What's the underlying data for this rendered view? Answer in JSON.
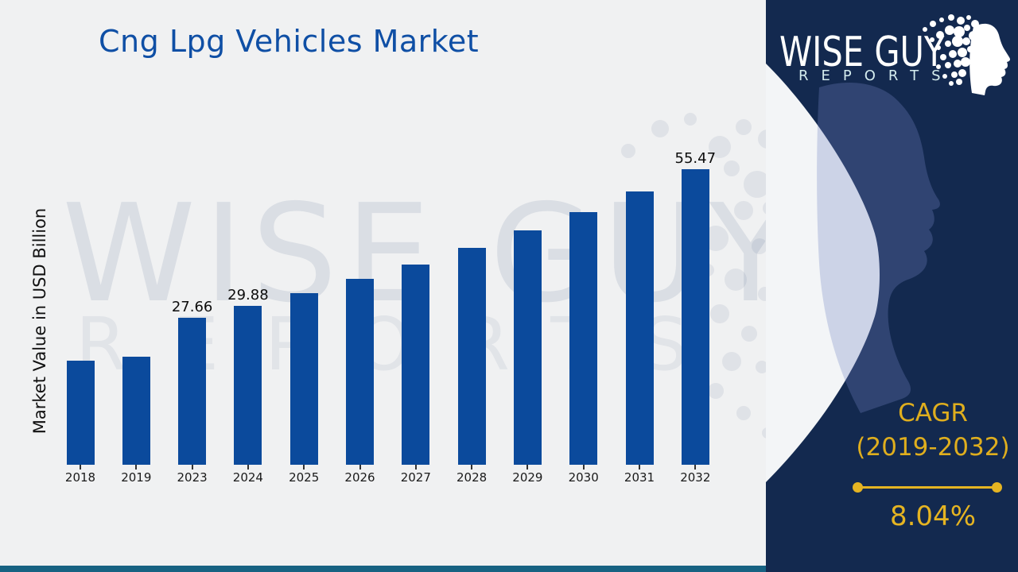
{
  "page": {
    "title": "Cng Lpg Vehicles Market"
  },
  "chart_data": {
    "type": "bar",
    "title": "Cng Lpg Vehicles Market",
    "xlabel": "",
    "ylabel": "Market Value in USD Billion",
    "unit": "USD Billion",
    "categories": [
      "2018",
      "2019",
      "2023",
      "2024",
      "2025",
      "2026",
      "2027",
      "2028",
      "2029",
      "2030",
      "2031",
      "2032"
    ],
    "values": [
      19.56,
      20.3,
      27.66,
      29.88,
      32.28,
      34.88,
      37.68,
      40.71,
      43.98,
      47.52,
      51.34,
      55.47
    ],
    "data_labels": [
      "",
      "",
      "27.66",
      "29.88",
      "",
      "",
      "",
      "",
      "",
      "",
      "",
      "55.47"
    ],
    "bar_color": "#0b4a9c",
    "ylim": [
      0,
      60
    ],
    "grid": false,
    "legend": null
  },
  "watermark": {
    "line1": "WISE GUY",
    "line2": "REPORTS"
  },
  "branding": {
    "logo_line1": "WISE GUY",
    "logo_line2": "REPORTS",
    "panel_color": "#13294f",
    "accent_gold": "#e5b422"
  },
  "cagr": {
    "heading": "CAGR",
    "range": "(2019-2032)",
    "value": "8.04%"
  }
}
